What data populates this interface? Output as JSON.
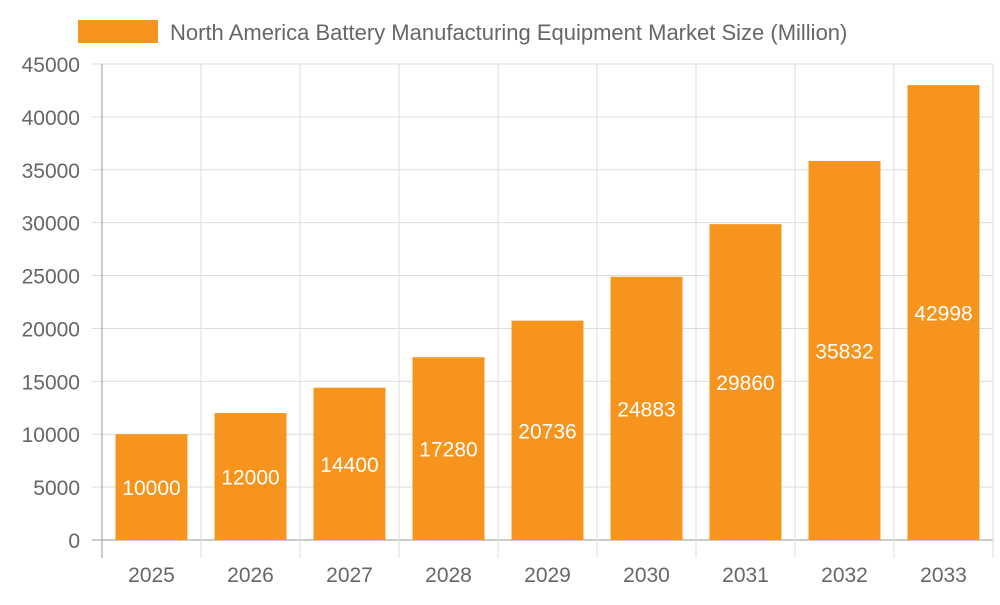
{
  "chart_data": {
    "type": "bar",
    "title": "",
    "xlabel": "",
    "ylabel": "",
    "legend": {
      "position": "top",
      "entries": [
        "North America Battery Manufacturing Equipment Market Size (Million)"
      ]
    },
    "categories": [
      "2025",
      "2026",
      "2027",
      "2028",
      "2029",
      "2030",
      "2031",
      "2032",
      "2033"
    ],
    "series": [
      {
        "name": "North America Battery Manufacturing Equipment Market Size (Million)",
        "values": [
          10000,
          12000,
          14400,
          17280,
          20736,
          24883,
          29860,
          35832,
          42998
        ],
        "color": "#F7941E"
      }
    ],
    "ylim": [
      0,
      45000
    ],
    "yticks": [
      0,
      5000,
      10000,
      15000,
      20000,
      25000,
      30000,
      35000,
      40000,
      45000
    ],
    "grid": true,
    "data_labels": true
  }
}
